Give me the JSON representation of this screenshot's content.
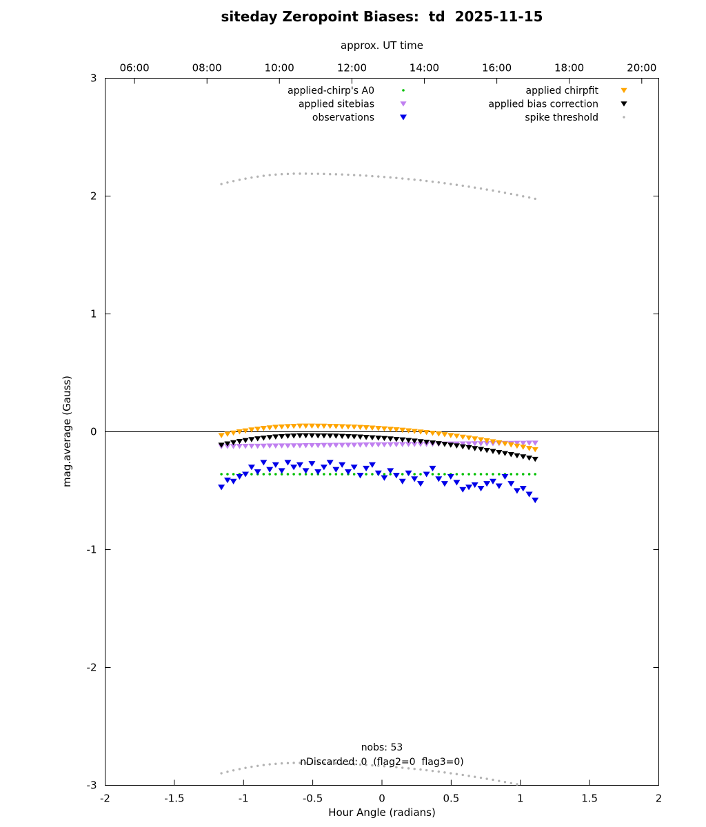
{
  "chart_data": {
    "type": "scatter",
    "title": "siteday Zeropoint Biases:  td  2025-11-15",
    "top_axis": {
      "label": "approx. UT time",
      "tick_labels": [
        "06:00",
        "08:00",
        "10:00",
        "12:00",
        "14:00",
        "16:00",
        "18:00",
        "20:00"
      ],
      "tick_values_ha": [
        -1.788,
        -1.264,
        -0.741,
        -0.217,
        0.306,
        0.83,
        1.353,
        1.877
      ]
    },
    "x_axis": {
      "label": "Hour Angle (radians)",
      "range": [
        -2,
        2
      ],
      "tick_values": [
        -2,
        -1.5,
        -1,
        -0.5,
        0,
        0.5,
        1,
        1.5,
        2
      ],
      "tick_labels": [
        "-2",
        "-1.5",
        "-1",
        "-0.5",
        "0",
        "0.5",
        "1",
        "1.5",
        "2"
      ]
    },
    "y_axis": {
      "label": "mag.average (Gauss)",
      "range": [
        -3,
        3
      ],
      "tick_values": [
        -3,
        -2,
        -1,
        0,
        1,
        2,
        3
      ],
      "tick_labels": [
        "-3",
        "-2",
        "-1",
        "0",
        "1",
        "2",
        "3"
      ]
    },
    "zero_line": true,
    "grid": false,
    "stats": {
      "nobs": 53,
      "nDiscarded": 0,
      "flag2": 0,
      "flag3": 0
    },
    "annotations": [
      {
        "text": "nobs: 53"
      },
      {
        "text": "nDiscarded: 0  (flag2=0  flag3=0)"
      }
    ],
    "x": [
      -1.16,
      -1.116,
      -1.073,
      -1.029,
      -0.986,
      -0.942,
      -0.898,
      -0.855,
      -0.811,
      -0.768,
      -0.724,
      -0.68,
      -0.637,
      -0.593,
      -0.55,
      -0.506,
      -0.462,
      -0.419,
      -0.375,
      -0.332,
      -0.288,
      -0.244,
      -0.201,
      -0.157,
      -0.114,
      -0.07,
      -0.026,
      0.017,
      0.061,
      0.104,
      0.148,
      0.192,
      0.235,
      0.279,
      0.322,
      0.366,
      0.41,
      0.453,
      0.497,
      0.54,
      0.584,
      0.628,
      0.671,
      0.715,
      0.758,
      0.802,
      0.846,
      0.889,
      0.933,
      0.976,
      1.02,
      1.064,
      1.107
    ],
    "series": [
      {
        "id": "spike-upper",
        "name": "spike threshold (upper)",
        "marker": "dot",
        "color": "#b3b3b3",
        "size": 1.7,
        "y": [
          2.102,
          2.115,
          2.127,
          2.138,
          2.148,
          2.157,
          2.165,
          2.172,
          2.178,
          2.182,
          2.186,
          2.188,
          2.19,
          2.19,
          2.19,
          2.189,
          2.189,
          2.188,
          2.186,
          2.185,
          2.183,
          2.181,
          2.178,
          2.176,
          2.173,
          2.169,
          2.166,
          2.162,
          2.158,
          2.154,
          2.149,
          2.144,
          2.139,
          2.134,
          2.128,
          2.122,
          2.116,
          2.109,
          2.102,
          2.095,
          2.088,
          2.08,
          2.072,
          2.064,
          2.055,
          2.047,
          2.037,
          2.028,
          2.018,
          2.009,
          1.998,
          1.988,
          1.977
        ]
      },
      {
        "id": "spike-lower",
        "name": "spike threshold (lower)",
        "marker": "dot",
        "color": "#b3b3b3",
        "size": 1.7,
        "y": [
          -2.898,
          -2.885,
          -2.873,
          -2.862,
          -2.852,
          -2.843,
          -2.835,
          -2.828,
          -2.822,
          -2.818,
          -2.814,
          -2.812,
          -2.81,
          -2.81,
          -2.81,
          -2.811,
          -2.811,
          -2.812,
          -2.814,
          -2.815,
          -2.817,
          -2.819,
          -2.822,
          -2.824,
          -2.827,
          -2.831,
          -2.834,
          -2.838,
          -2.842,
          -2.846,
          -2.851,
          -2.856,
          -2.861,
          -2.866,
          -2.872,
          -2.878,
          -2.884,
          -2.891,
          -2.898,
          -2.905,
          -2.912,
          -2.92,
          -2.928,
          -2.936,
          -2.945,
          -2.953,
          -2.963,
          -2.972,
          -2.982,
          -2.991,
          -3.002,
          -3.012,
          -3.023
        ]
      },
      {
        "id": "a0",
        "name": "applied-chirp's A0",
        "marker": "dot",
        "color": "#00c000",
        "size": 1.8,
        "y": [
          -0.36,
          -0.36,
          -0.36,
          -0.36,
          -0.36,
          -0.36,
          -0.36,
          -0.36,
          -0.36,
          -0.36,
          -0.36,
          -0.36,
          -0.36,
          -0.36,
          -0.36,
          -0.36,
          -0.36,
          -0.36,
          -0.36,
          -0.36,
          -0.36,
          -0.36,
          -0.36,
          -0.36,
          -0.36,
          -0.36,
          -0.36,
          -0.36,
          -0.36,
          -0.36,
          -0.36,
          -0.36,
          -0.36,
          -0.36,
          -0.36,
          -0.36,
          -0.36,
          -0.36,
          -0.36,
          -0.36,
          -0.36,
          -0.36,
          -0.36,
          -0.36,
          -0.36,
          -0.36,
          -0.36,
          -0.36,
          -0.36,
          -0.36,
          -0.36,
          -0.36,
          -0.36
        ]
      },
      {
        "id": "sitebias",
        "name": "applied sitebias",
        "marker": "triangle-down",
        "color": "#c080f0",
        "size": 4.6,
        "y": [
          -0.124,
          -0.123,
          -0.123,
          -0.122,
          -0.122,
          -0.121,
          -0.121,
          -0.12,
          -0.119,
          -0.119,
          -0.118,
          -0.118,
          -0.117,
          -0.117,
          -0.116,
          -0.115,
          -0.115,
          -0.114,
          -0.114,
          -0.113,
          -0.113,
          -0.112,
          -0.112,
          -0.111,
          -0.11,
          -0.11,
          -0.109,
          -0.109,
          -0.108,
          -0.108,
          -0.107,
          -0.106,
          -0.106,
          -0.105,
          -0.105,
          -0.104,
          -0.104,
          -0.103,
          -0.102,
          -0.102,
          -0.101,
          -0.101,
          -0.1,
          -0.1,
          -0.099,
          -0.098,
          -0.098,
          -0.097,
          -0.097,
          -0.096,
          -0.096,
          -0.095,
          -0.095
        ]
      },
      {
        "id": "chirpfit",
        "name": "applied chirpfit",
        "marker": "triangle-down",
        "color": "#ffa500",
        "size": 4.6,
        "y": [
          -0.03,
          -0.019,
          -0.009,
          0.001,
          0.009,
          0.017,
          0.024,
          0.03,
          0.035,
          0.04,
          0.043,
          0.046,
          0.048,
          0.05,
          0.05,
          0.05,
          0.049,
          0.049,
          0.048,
          0.047,
          0.045,
          0.043,
          0.041,
          0.039,
          0.036,
          0.033,
          0.03,
          0.027,
          0.023,
          0.019,
          0.015,
          0.01,
          0.005,
          0.0,
          -0.005,
          -0.011,
          -0.017,
          -0.023,
          -0.03,
          -0.036,
          -0.044,
          -0.051,
          -0.059,
          -0.066,
          -0.075,
          -0.083,
          -0.092,
          -0.101,
          -0.11,
          -0.12,
          -0.129,
          -0.14,
          -0.15
        ]
      },
      {
        "id": "biascorr",
        "name": "applied bias correction",
        "marker": "triangle-down",
        "color": "#000000",
        "size": 4.6,
        "y": [
          -0.112,
          -0.101,
          -0.091,
          -0.081,
          -0.073,
          -0.065,
          -0.058,
          -0.052,
          -0.047,
          -0.042,
          -0.039,
          -0.036,
          -0.034,
          -0.032,
          -0.032,
          -0.032,
          -0.033,
          -0.033,
          -0.034,
          -0.035,
          -0.037,
          -0.039,
          -0.041,
          -0.043,
          -0.046,
          -0.049,
          -0.052,
          -0.055,
          -0.059,
          -0.063,
          -0.067,
          -0.072,
          -0.077,
          -0.082,
          -0.087,
          -0.093,
          -0.099,
          -0.105,
          -0.112,
          -0.118,
          -0.126,
          -0.133,
          -0.141,
          -0.148,
          -0.157,
          -0.165,
          -0.174,
          -0.183,
          -0.192,
          -0.202,
          -0.211,
          -0.222,
          -0.232
        ]
      },
      {
        "id": "obs",
        "name": "observations",
        "marker": "triangle-down",
        "color": "#0000e8",
        "size": 5,
        "y": [
          -0.47,
          -0.41,
          -0.42,
          -0.38,
          -0.36,
          -0.3,
          -0.34,
          -0.26,
          -0.32,
          -0.28,
          -0.33,
          -0.26,
          -0.3,
          -0.28,
          -0.33,
          -0.27,
          -0.34,
          -0.3,
          -0.26,
          -0.32,
          -0.28,
          -0.34,
          -0.3,
          -0.37,
          -0.31,
          -0.28,
          -0.35,
          -0.39,
          -0.33,
          -0.37,
          -0.42,
          -0.35,
          -0.4,
          -0.44,
          -0.36,
          -0.31,
          -0.4,
          -0.44,
          -0.38,
          -0.43,
          -0.49,
          -0.47,
          -0.45,
          -0.48,
          -0.44,
          -0.42,
          -0.46,
          -0.38,
          -0.44,
          -0.5,
          -0.48,
          -0.53,
          -0.58
        ]
      }
    ],
    "legend": {
      "position": "top-inside-two-columns",
      "left": [
        {
          "label": "applied-chirp's A0",
          "series": "a0"
        },
        {
          "label": "applied sitebias",
          "series": "sitebias"
        },
        {
          "label": "observations",
          "series": "obs"
        }
      ],
      "right": [
        {
          "label": "applied chirpfit",
          "series": "chirpfit"
        },
        {
          "label": "applied bias correction",
          "series": "biascorr"
        },
        {
          "label": "spike threshold",
          "series": "spike-upper"
        }
      ]
    }
  }
}
